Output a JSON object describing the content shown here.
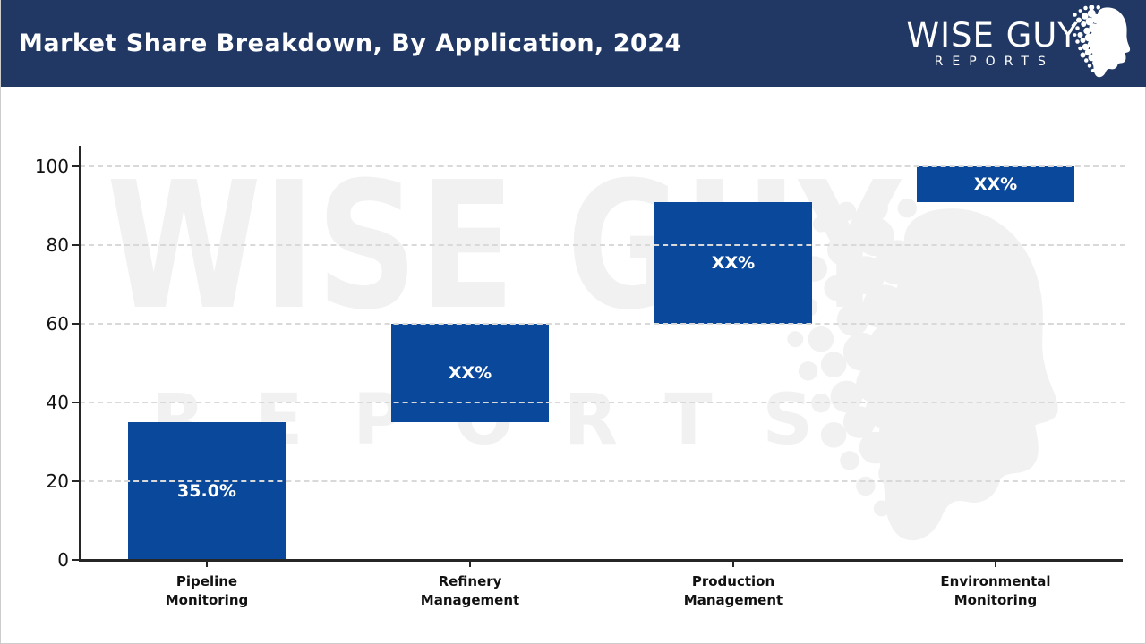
{
  "header": {
    "title": "Market Share Breakdown, By Application, 2024",
    "brand": {
      "line1": "WISE GUY",
      "line2": "REPORTS"
    }
  },
  "watermark": {
    "line1": "WISE GUY",
    "line2": "REPORTS"
  },
  "chart_data": {
    "type": "bar",
    "subtype": "waterfall-floating-segments",
    "title": "Market Share Breakdown, By Application, 2024",
    "categories": [
      "Pipeline Monitoring",
      "Refinery Management",
      "Production Management",
      "Environmental Monitoring"
    ],
    "segments": [
      {
        "category": "Pipeline Monitoring",
        "start": 0,
        "end": 35,
        "label": "35.0%"
      },
      {
        "category": "Refinery Management",
        "start": 35,
        "end": 60,
        "label": "XX%"
      },
      {
        "category": "Production Management",
        "start": 60,
        "end": 91,
        "label": "XX%"
      },
      {
        "category": "Environmental Monitoring",
        "start": 91,
        "end": 100,
        "label": "XX%"
      }
    ],
    "xlabel": "",
    "ylabel": "",
    "ylim": [
      0,
      100
    ],
    "yticks": [
      0,
      20,
      40,
      60,
      80,
      100
    ],
    "grid": "horizontal dashed, drawn over bars",
    "legend": "none",
    "bar_color": "#0A489B",
    "bar_label_color": "#ffffff"
  },
  "colors": {
    "header_bg": "#213864",
    "header_text": "#ffffff",
    "bar": "#0A489B",
    "axis": "#262626",
    "grid": "#d9d9d9",
    "watermark": "#f1f1f1",
    "page_border": "#cccccc"
  }
}
